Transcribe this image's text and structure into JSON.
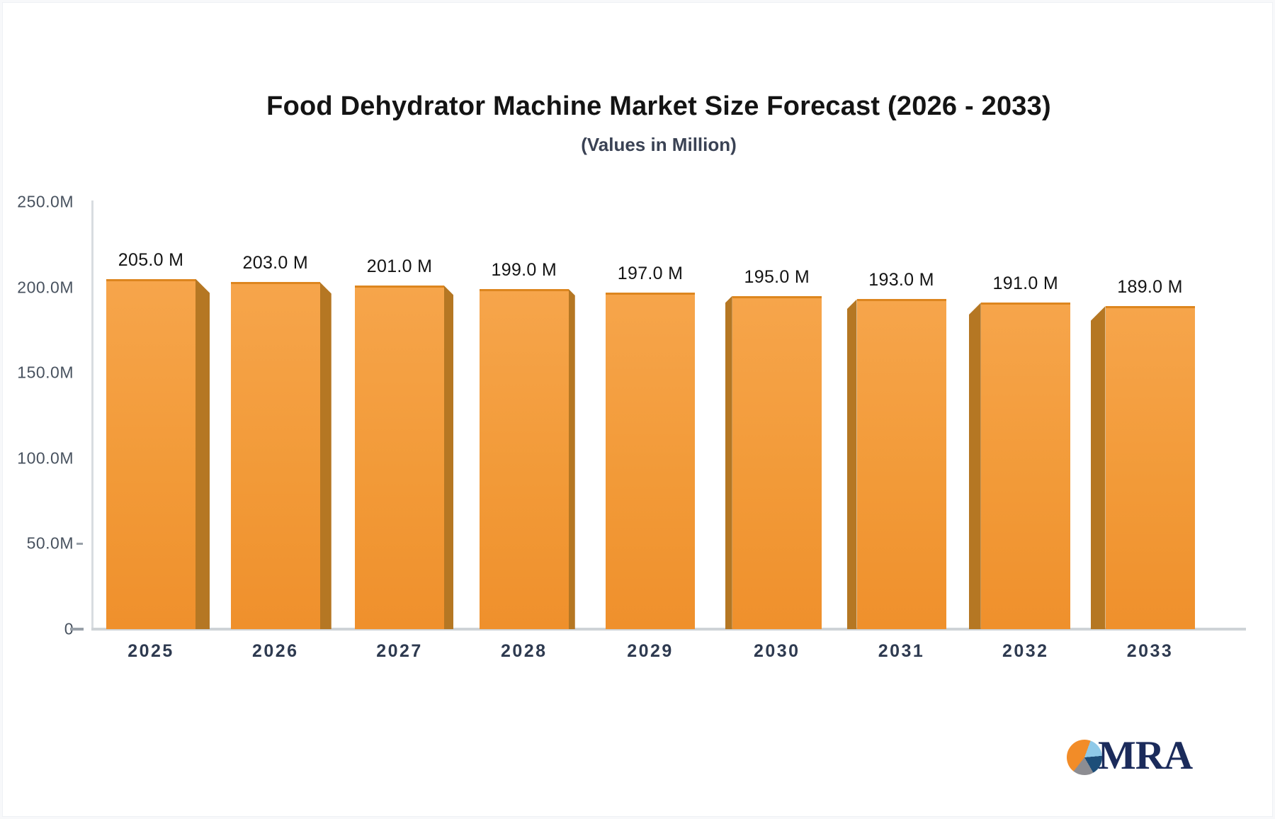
{
  "title": "Food Dehydrator Machine Market Size Forecast (2026 - 2033)",
  "subtitle": "(Values in Million)",
  "chart_data": {
    "type": "bar",
    "categories": [
      "2025",
      "2026",
      "2027",
      "2028",
      "2029",
      "2030",
      "2031",
      "2032",
      "2033"
    ],
    "values": [
      205.0,
      203.0,
      201.0,
      199.0,
      197.0,
      195.0,
      193.0,
      191.0,
      189.0
    ],
    "value_labels": [
      "205.0 M",
      "203.0 M",
      "201.0 M",
      "199.0 M",
      "197.0 M",
      "195.0 M",
      "193.0 M",
      "191.0 M",
      "189.0 M"
    ],
    "y_tick_labels": [
      "250.0M",
      "200.0M",
      "150.0M",
      "100.0M",
      "50.0M",
      "0"
    ],
    "y_tick_values": [
      250,
      200,
      150,
      100,
      50,
      0
    ],
    "ylim": [
      0,
      250
    ],
    "unit": "Million",
    "grid": false,
    "legend": "none",
    "bar_face_color": "#F49B38",
    "bar_side_color": "#B57723",
    "bar_top_edge_color": "#DD861F"
  },
  "logo": {
    "text": "MRA",
    "pie_orange": "#F28C28",
    "pie_lightblue": "#8FC9E8",
    "pie_navy": "#1D4E79",
    "pie_gray": "#8D8D92",
    "text_color": "#1B2B5B"
  }
}
